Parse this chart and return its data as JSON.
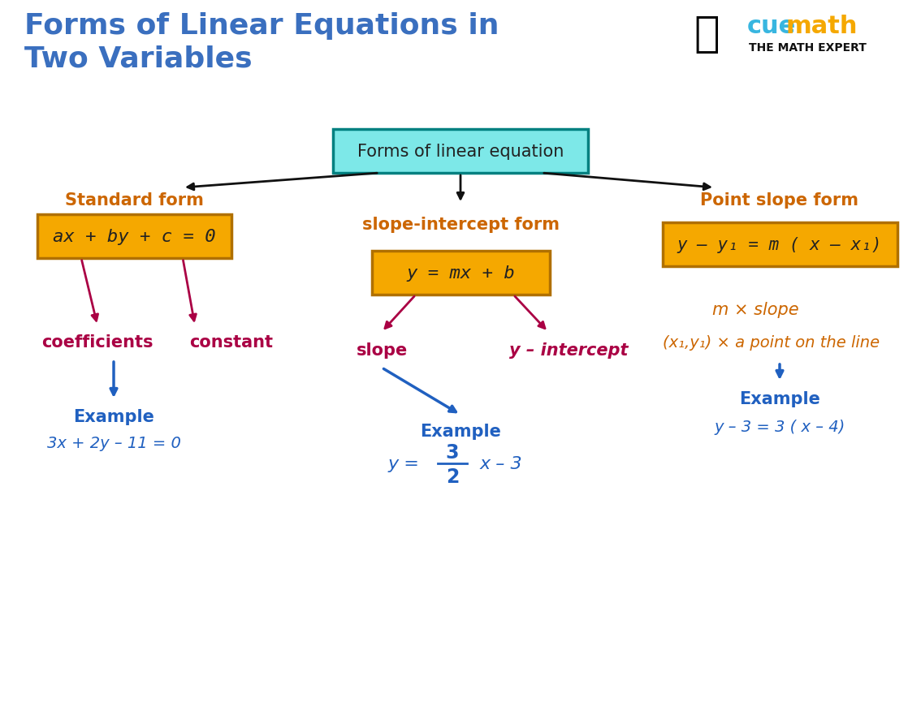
{
  "title_line1": "Forms of Linear Equations in",
  "title_line2": "Two Variables",
  "title_color": "#3a6fbf",
  "bg_color": "#ffffff",
  "root_box_text": "Forms of linear equation",
  "root_box_bg": "#7de8e8",
  "root_box_border": "#008080",
  "standard_form_label": "Standard form",
  "standard_form_eq": "ax + by + c = 0",
  "standard_form_box_bg": "#f5a800",
  "standard_form_box_border": "#b07000",
  "slope_intercept_label": "slope-intercept form",
  "slope_intercept_eq": "y = mx + b",
  "slope_intercept_box_bg": "#f5a800",
  "slope_intercept_box_border": "#b07000",
  "point_slope_label": "Point slope form",
  "point_slope_eq": "y – y₁ = m ( x – x₁)",
  "point_slope_box_bg": "#f5a800",
  "point_slope_box_border": "#b07000",
  "point_slope_info1": "m × slope",
  "point_slope_info2": "(x₁,y₁) × a point on the line",
  "point_example_eq": "y – 3 = 3 ( x – 4)",
  "standard_example_eq": "3x + 2y – 11 = 0",
  "dark_orange": "#cc6600",
  "crimson": "#aa0044",
  "blue": "#2060c0",
  "black": "#111111",
  "red_arrow": "#aa0044",
  "blue_arrow": "#2060c0",
  "arrow_color": "#111111"
}
